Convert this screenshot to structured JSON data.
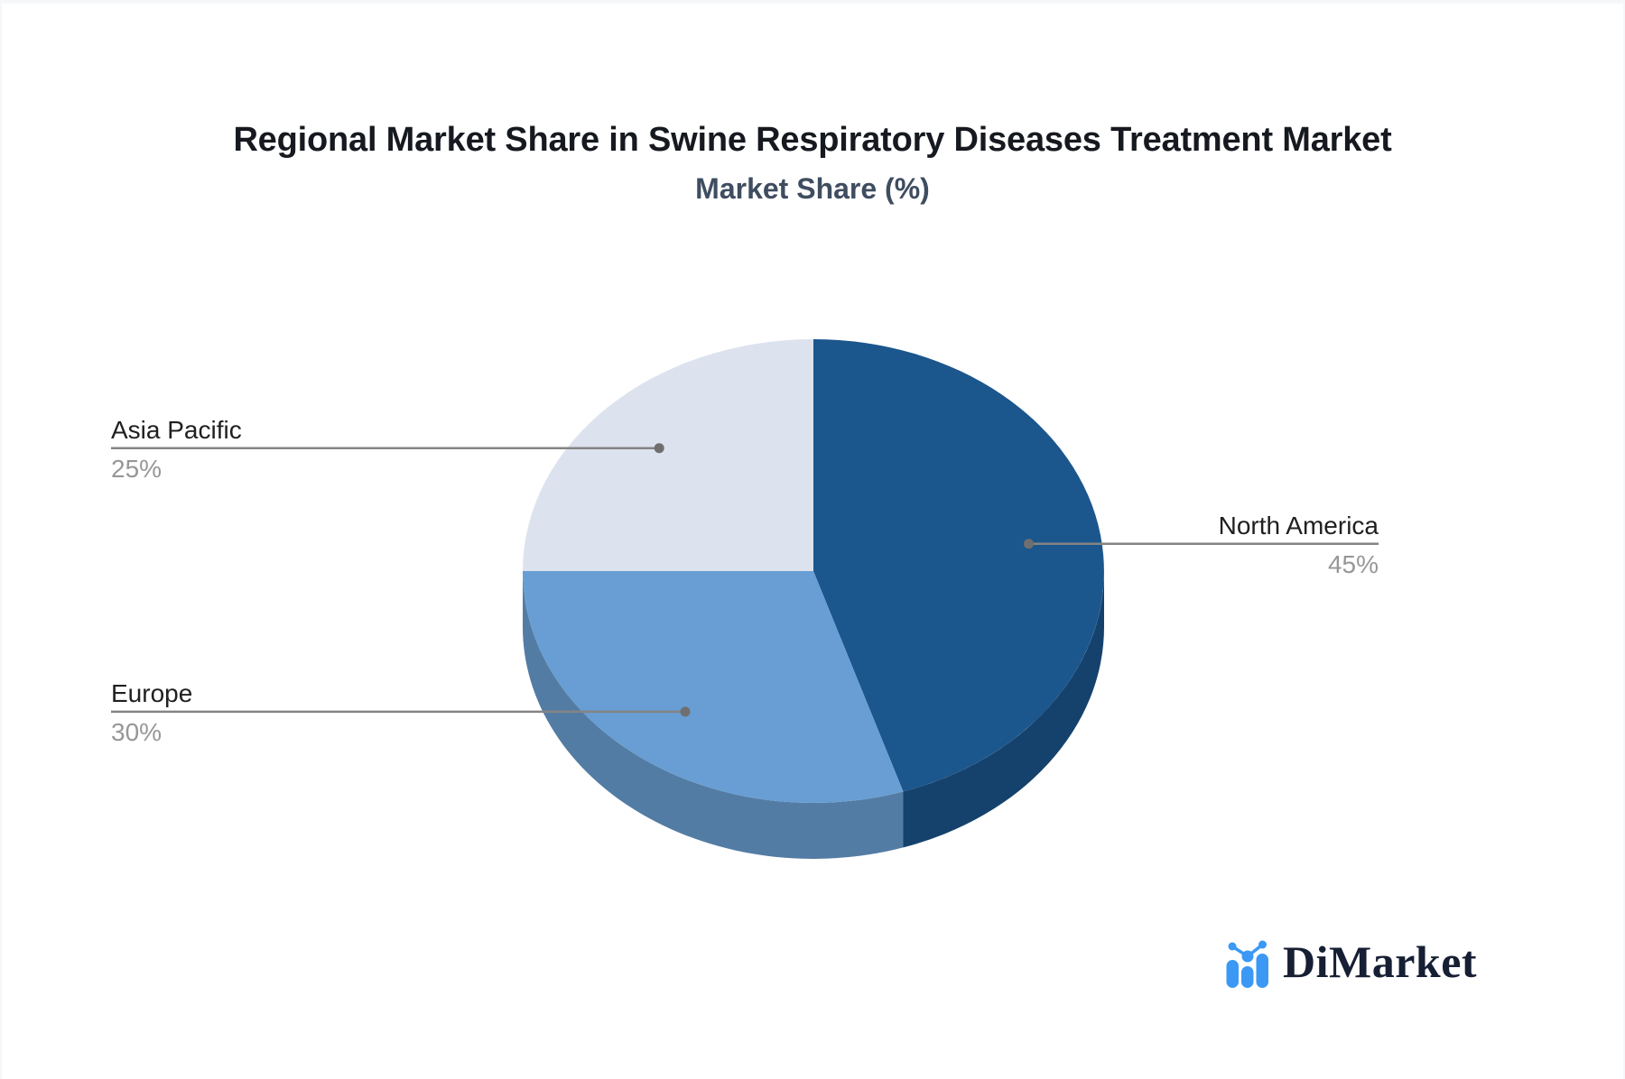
{
  "title": "Regional Market Share in Swine Respiratory Diseases Treatment Market",
  "subtitle": "Market Share (%)",
  "chart_data": {
    "type": "pie",
    "style": "3d",
    "title": "Regional Market Share in Swine Respiratory Diseases Treatment Market",
    "subtitle": "Market Share (%)",
    "unit": "%",
    "start_angle_deg": 90,
    "direction": "clockwise",
    "legend_position": "none",
    "slices": [
      {
        "label": "North America",
        "value": 45,
        "display": "45%",
        "color": "#1B568D",
        "side_color": "#15426C",
        "label_side": "right"
      },
      {
        "label": "Europe",
        "value": 30,
        "display": "30%",
        "color": "#689ED3",
        "side_color": "#537CA4",
        "label_side": "left"
      },
      {
        "label": "Asia Pacific",
        "value": 25,
        "display": "25%",
        "color": "#DCE3EE",
        "side_color": "#BCC7D8",
        "label_side": "left"
      }
    ]
  },
  "colors": {
    "background": "#FFFFFF",
    "title_text": "#16191F",
    "subtitle_text": "#3F4D60",
    "label_text": "#202020",
    "value_text": "#979797",
    "leader_line": "#848484",
    "leader_dot": "#6F6F6F",
    "logo_text": "#161F33",
    "logo_icon": "#3B98F4"
  },
  "logo": {
    "text": "DiMarket"
  }
}
